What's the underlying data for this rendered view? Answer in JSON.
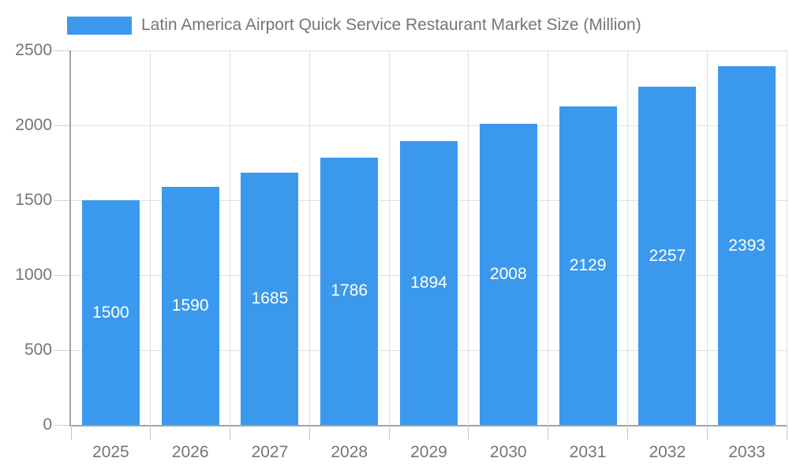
{
  "chart_data": {
    "type": "bar",
    "title": "Latin America Airport Quick Service Restaurant Market Size (Million)",
    "categories": [
      "2025",
      "2026",
      "2027",
      "2028",
      "2029",
      "2030",
      "2031",
      "2032",
      "2033"
    ],
    "values": [
      1500,
      1590,
      1685,
      1786,
      1894,
      2008,
      2129,
      2257,
      2393
    ],
    "xlabel": "",
    "ylabel": "",
    "ylim": [
      0,
      2500
    ],
    "yticks": [
      0,
      500,
      1000,
      1500,
      2000,
      2500
    ],
    "grid": true,
    "legend_position": "top-left",
    "bar_color": "#3b99ed",
    "bar_label_color": "#ffffff",
    "axis_text_color": "#757575",
    "gridline_color": "#e0e0e0",
    "axis_line_color": "#a3a3a3"
  }
}
